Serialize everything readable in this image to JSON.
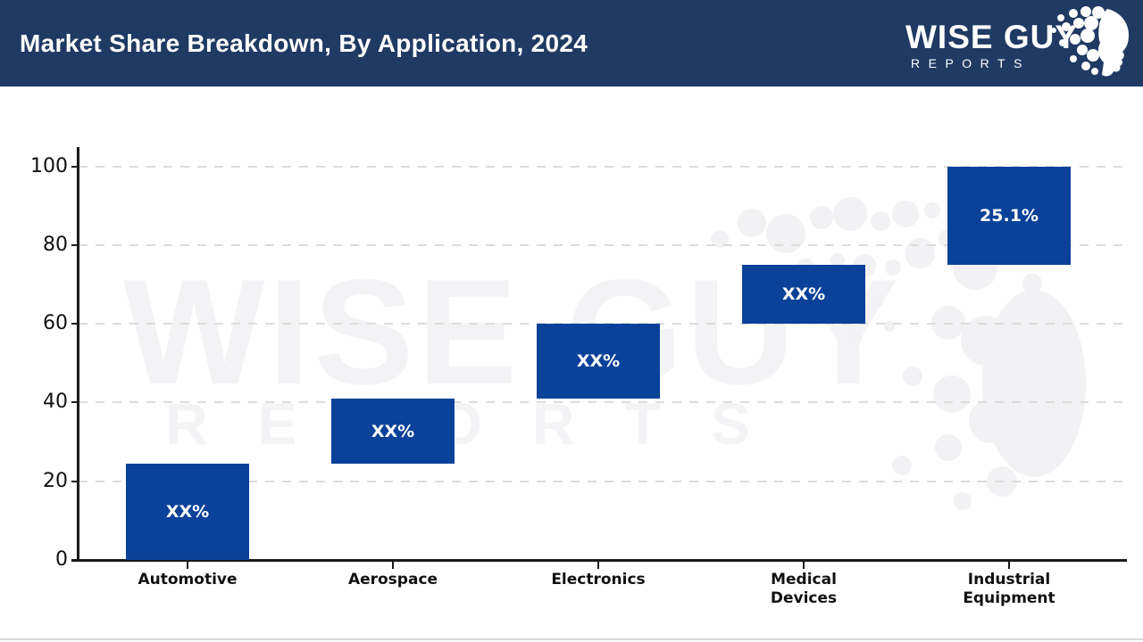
{
  "header": {
    "logo": {
      "line1": "WISE GUY",
      "line2": "REPORTS"
    }
  },
  "watermark": {
    "line1": "WISE GUY",
    "line2": "REPORTS"
  },
  "colors": {
    "header_bg": "#1f3a63",
    "bar": "#0a4199",
    "grid": "#dcdcdc",
    "axis": "#1a1a1a",
    "bar_label_text": "#ffffff"
  },
  "chart_data": {
    "type": "bar",
    "subtype": "stacked-waterfall",
    "title": "Market Share Breakdown, By Application, 2024",
    "categories": [
      "Automotive",
      "Aerospace",
      "Electronics",
      "Medical Devices",
      "Industrial Equipment"
    ],
    "values": [
      24.4,
      16.5,
      19.2,
      14.8,
      25.1
    ],
    "segment_starts": [
      0,
      24.4,
      40.9,
      60.1,
      74.9
    ],
    "segment_ends": [
      24.4,
      40.9,
      60.1,
      74.9,
      100
    ],
    "bar_labels": [
      "XX%",
      "XX%",
      "XX%",
      "XX%",
      "25.1%"
    ],
    "xlabel": "",
    "ylabel": "",
    "ylim": [
      0,
      105
    ],
    "yticks": [
      0,
      20,
      40,
      60,
      80,
      100
    ],
    "grid": "horizontal-dashed",
    "legend": "none",
    "bar_color": "#0a4199"
  }
}
